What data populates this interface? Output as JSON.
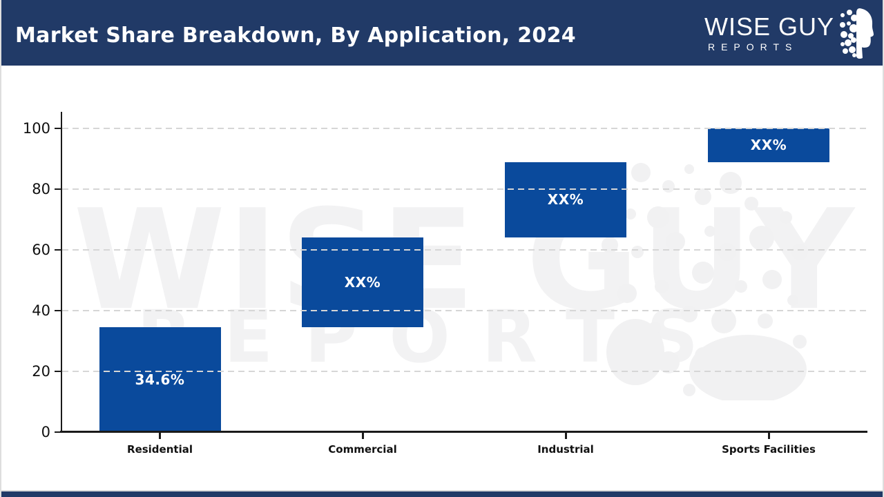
{
  "header": {
    "title": "Market Share Breakdown, By Application, 2024",
    "logo": {
      "brand_top": "WISE GUY",
      "brand_bottom": "REPORTS",
      "head_icon": "dotted-head-profile"
    }
  },
  "watermark": {
    "text_primary": "WISE GUY",
    "text_secondary": "REPORTS"
  },
  "colors": {
    "header_bg": "#213A67",
    "footer_bg": "#213A67",
    "bar_fill": "#0A4A9C",
    "bar_label": "#FFFFFF",
    "axis": "#1A1A1A",
    "gridline": "#D6D6D6",
    "watermark": "#F2F2F3",
    "frame_border": "#DEDEDE",
    "title_text": "#FFFFFF"
  },
  "chart_data": {
    "type": "bar",
    "subtype": "stacked-waterfall-percentage",
    "title": "Market Share Breakdown, By Application, 2024",
    "categories": [
      "Residential",
      "Commercial",
      "Industrial",
      "Sports Facilities"
    ],
    "segments": [
      {
        "category": "Residential",
        "start": 0,
        "end": 34.6,
        "value": 34.6,
        "label": "34.6%"
      },
      {
        "category": "Commercial",
        "start": 34.6,
        "end": 64.1,
        "value": 29.5,
        "label": "XX%"
      },
      {
        "category": "Industrial",
        "start": 64.1,
        "end": 88.9,
        "value": 24.8,
        "label": "XX%"
      },
      {
        "category": "Sports Facilities",
        "start": 88.9,
        "end": 100,
        "value": 11.1,
        "label": "XX%"
      }
    ],
    "xlabel": "",
    "ylabel": "",
    "ylim": [
      0,
      105
    ],
    "yticks": [
      0,
      20,
      40,
      60,
      80,
      100
    ],
    "grid": "horizontal-dashed",
    "legend": false,
    "units": "percent"
  }
}
